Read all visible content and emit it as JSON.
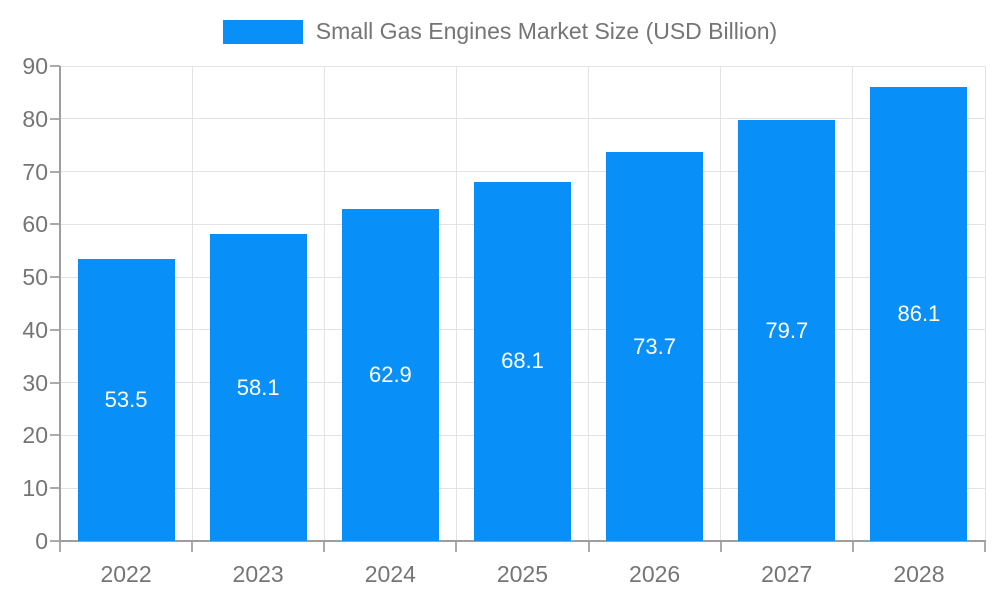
{
  "legend": {
    "label": "Small Gas Engines Market Size (USD Billion)"
  },
  "colors": {
    "bar": "#0990F8",
    "grid": "#E3E3E3",
    "axis": "#9E9E9E",
    "tick": "#ABABAB",
    "axis_text": "#757575",
    "bar_label_text": "#FFFFFF",
    "background": "#FFFFFF"
  },
  "chart_data": {
    "type": "bar",
    "title": "Small Gas Engines Market Size (USD Billion)",
    "categories": [
      "2022",
      "2023",
      "2024",
      "2025",
      "2026",
      "2027",
      "2028"
    ],
    "values": [
      53.5,
      58.1,
      62.9,
      68.1,
      73.7,
      79.7,
      86.1
    ],
    "xlabel": "",
    "ylabel": "",
    "ylim": [
      0,
      90
    ],
    "ytick_step": 10,
    "ytick_labels": [
      "0",
      "10",
      "20",
      "30",
      "40",
      "50",
      "60",
      "70",
      "80",
      "90"
    ],
    "grid": true,
    "legend_position": "top-center",
    "bar_labels_visible": true,
    "bar_label_position": "center"
  }
}
